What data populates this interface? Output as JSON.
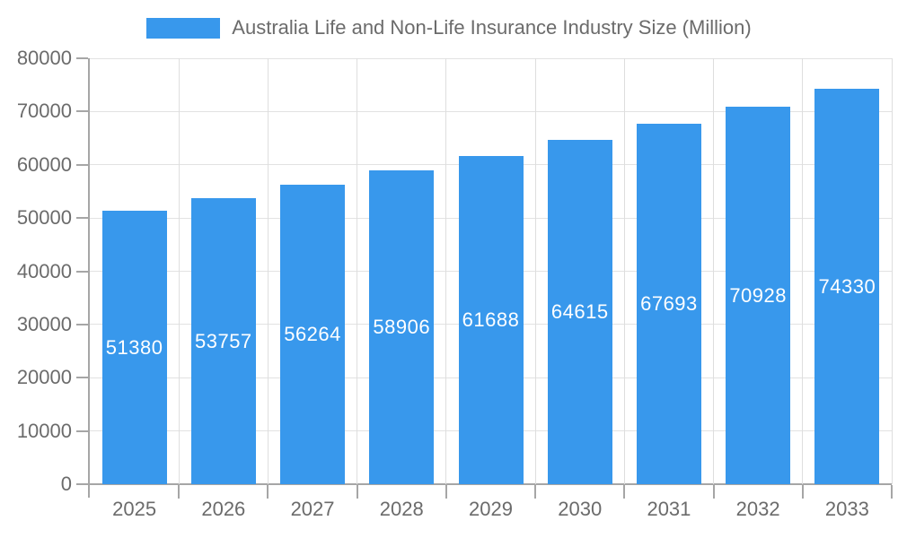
{
  "legend": {
    "label": "Australia Life and Non-Life Insurance Industry Size (Million)"
  },
  "chart_data": {
    "type": "bar",
    "title": "Australia Life and Non-Life Insurance Industry Size (Million)",
    "categories": [
      "2025",
      "2026",
      "2027",
      "2028",
      "2029",
      "2030",
      "2031",
      "2032",
      "2033"
    ],
    "values": [
      51380,
      53757,
      56264,
      58906,
      61688,
      64615,
      67693,
      70928,
      74330
    ],
    "value_labels": [
      "51380",
      "53757",
      "56264",
      "58906",
      "61688",
      "64615",
      "67693",
      "70928",
      "74330"
    ],
    "xlabel": "",
    "ylabel": "",
    "ylim": [
      0,
      80000
    ],
    "yticks": [
      0,
      10000,
      20000,
      30000,
      40000,
      50000,
      60000,
      70000,
      80000
    ],
    "grid": true,
    "legend_position": "top",
    "colors": {
      "bar": "#3898ec",
      "value_label": "#ffffff",
      "axis_text": "#6b6b6b",
      "grid_h": "#e2e2e2",
      "grid_v": "#dedede",
      "axis_line": "#a6a6a6"
    }
  }
}
